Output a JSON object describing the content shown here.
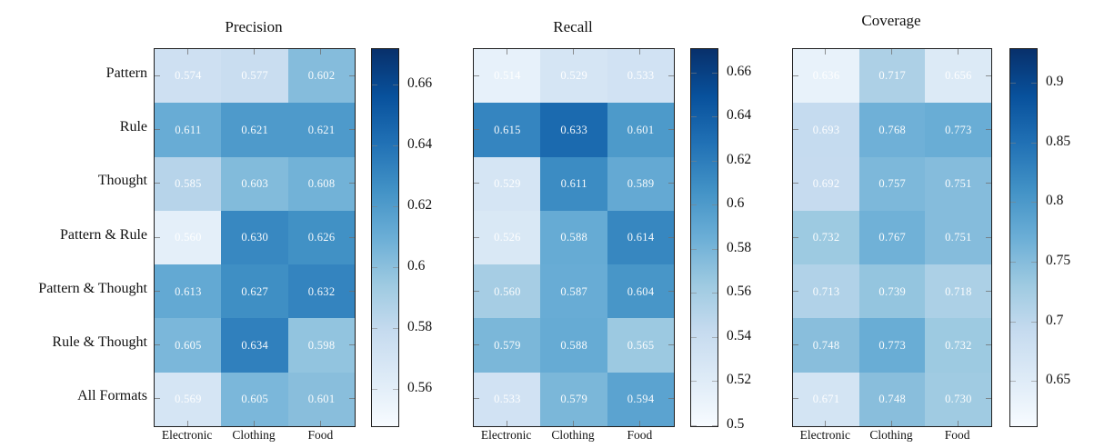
{
  "figure": {
    "background": "#ffffff",
    "colormap": {
      "name": "Blues",
      "stops": [
        "#f7fbff",
        "#deebf7",
        "#c6dbef",
        "#9ecae1",
        "#6baed6",
        "#4292c6",
        "#2171b5",
        "#08519c",
        "#08306b"
      ]
    },
    "text_color": "#111111",
    "cell_text_color": "#ffffff",
    "border_color": "#1f1f1f",
    "tick_color": "#6e6e6e"
  },
  "chart_data": [
    {
      "type": "heatmap",
      "title": "Precision",
      "rows": [
        "Pattern",
        "Rule",
        "Thought",
        "Pattern & Rule",
        "Pattern & Thought",
        "Rule & Thought",
        "All Formats"
      ],
      "columns": [
        "Electronic",
        "Clothing",
        "Food"
      ],
      "values": [
        [
          0.574,
          0.577,
          0.602
        ],
        [
          0.611,
          0.621,
          0.621
        ],
        [
          0.585,
          0.603,
          0.608
        ],
        [
          0.56,
          0.63,
          0.626
        ],
        [
          0.613,
          0.627,
          0.632
        ],
        [
          0.605,
          0.634,
          0.598
        ],
        [
          0.569,
          0.605,
          0.601
        ]
      ],
      "show_row_labels": true,
      "vmin": 0.548,
      "vmax": 0.672,
      "colorbar": {
        "position": "right",
        "ticks": [
          {
            "v": 0.66,
            "label": "0.66"
          },
          {
            "v": 0.64,
            "label": "0.64"
          },
          {
            "v": 0.62,
            "label": "0.62"
          },
          {
            "v": 0.6,
            "label": "0.6"
          },
          {
            "v": 0.58,
            "label": "0.58"
          },
          {
            "v": 0.56,
            "label": "0.56"
          }
        ]
      }
    },
    {
      "type": "heatmap",
      "title": "Recall",
      "rows": [
        "Pattern",
        "Rule",
        "Thought",
        "Pattern & Rule",
        "Pattern & Thought",
        "Rule & Thought",
        "All Formats"
      ],
      "columns": [
        "Electronic",
        "Clothing",
        "Food"
      ],
      "values": [
        [
          0.514,
          0.529,
          0.533
        ],
        [
          0.615,
          0.633,
          0.601
        ],
        [
          0.529,
          0.611,
          0.589
        ],
        [
          0.526,
          0.588,
          0.614
        ],
        [
          0.56,
          0.587,
          0.604
        ],
        [
          0.579,
          0.588,
          0.565
        ],
        [
          0.533,
          0.579,
          0.594
        ]
      ],
      "show_row_labels": false,
      "vmin": 0.5,
      "vmax": 0.671,
      "colorbar": {
        "position": "right",
        "ticks": [
          {
            "v": 0.66,
            "label": "0.66"
          },
          {
            "v": 0.64,
            "label": "0.64"
          },
          {
            "v": 0.62,
            "label": "0.62"
          },
          {
            "v": 0.6,
            "label": "0.6"
          },
          {
            "v": 0.58,
            "label": "0.58"
          },
          {
            "v": 0.56,
            "label": "0.56"
          },
          {
            "v": 0.54,
            "label": "0.54"
          },
          {
            "v": 0.52,
            "label": "0.52"
          },
          {
            "v": 0.5,
            "label": "0.5"
          }
        ]
      }
    },
    {
      "type": "heatmap",
      "title": "Coverage",
      "rows": [
        "Pattern",
        "Rule",
        "Thought",
        "Pattern & Rule",
        "Pattern & Thought",
        "Rule & Thought",
        "All Formats"
      ],
      "columns": [
        "Electronic",
        "Clothing",
        "Food"
      ],
      "values": [
        [
          0.636,
          0.717,
          0.656
        ],
        [
          0.693,
          0.768,
          0.773
        ],
        [
          0.692,
          0.757,
          0.751
        ],
        [
          0.732,
          0.767,
          0.751
        ],
        [
          0.713,
          0.739,
          0.718
        ],
        [
          0.748,
          0.773,
          0.732
        ],
        [
          0.671,
          0.748,
          0.73
        ]
      ],
      "show_row_labels": false,
      "vmin": 0.613,
      "vmax": 0.929,
      "colorbar": {
        "position": "right",
        "ticks": [
          {
            "v": 0.9,
            "label": "0.9"
          },
          {
            "v": 0.85,
            "label": "0.85"
          },
          {
            "v": 0.8,
            "label": "0.8"
          },
          {
            "v": 0.75,
            "label": "0.75"
          },
          {
            "v": 0.7,
            "label": "0.7"
          },
          {
            "v": 0.65,
            "label": "0.65"
          }
        ]
      }
    }
  ]
}
